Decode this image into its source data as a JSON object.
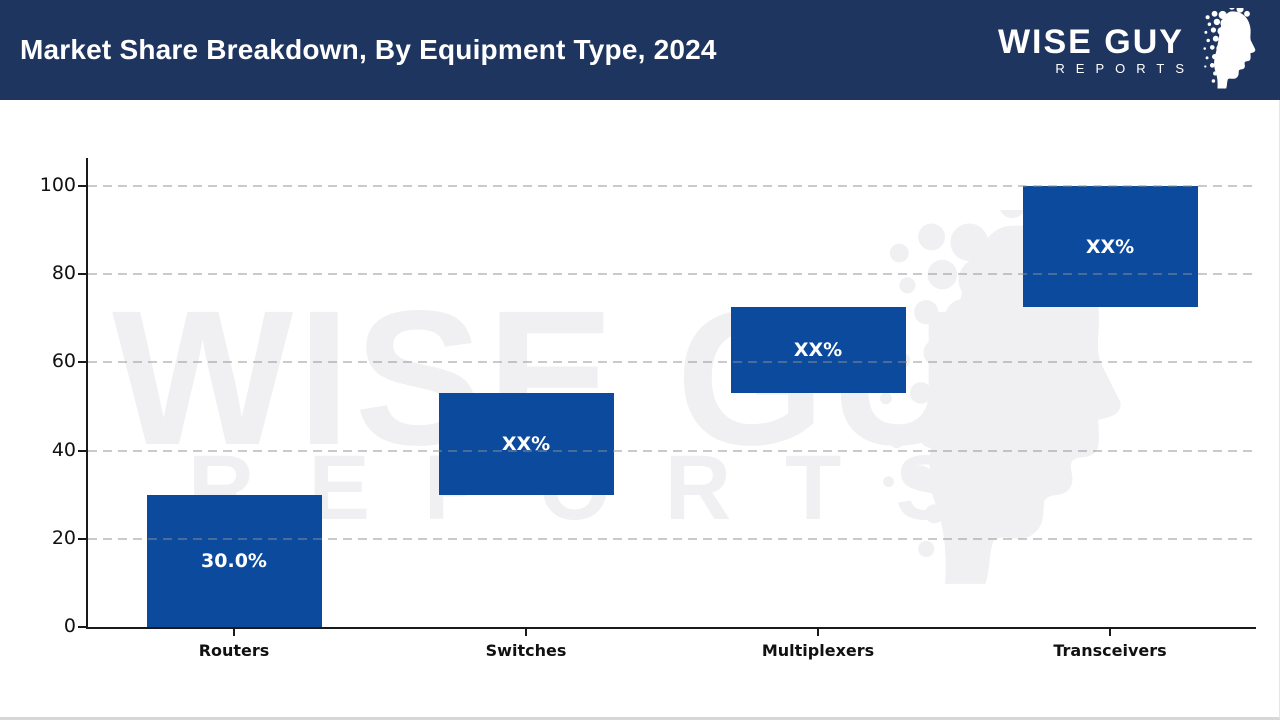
{
  "header": {
    "title": "Market Share Breakdown, By Equipment Type, 2024",
    "brand": {
      "line1": "WISE GUY",
      "line2": "REPORTS"
    }
  },
  "watermark": {
    "line1": "WISE GUY",
    "line2": "REPORTS"
  },
  "colors": {
    "header_bg": "#1e3560",
    "bar_fill": "#0c4a9e",
    "axis": "#1a1a1a",
    "gridline": "#c9c9c9",
    "bar_label_text": "#ffffff",
    "watermark": "#f0f0f2"
  },
  "chart_data": {
    "type": "bar",
    "subtype": "floating-waterfall",
    "title": "Market Share Breakdown, By Equipment Type, 2024",
    "categories": [
      "Routers",
      "Switches",
      "Multiplexers",
      "Transceivers"
    ],
    "bars": [
      {
        "category": "Routers",
        "start": 0,
        "end": 30,
        "label": "30.0%"
      },
      {
        "category": "Switches",
        "start": 30,
        "end": 53,
        "label": "XX%"
      },
      {
        "category": "Multiplexers",
        "start": 53,
        "end": 72.5,
        "label": "XX%"
      },
      {
        "category": "Transceivers",
        "start": 72.5,
        "end": 100,
        "label": "XX%"
      }
    ],
    "xlabel": "",
    "ylabel": "",
    "ylim": [
      0,
      100
    ],
    "yticks": [
      0,
      20,
      40,
      60,
      80,
      100
    ],
    "grid": "horizontal-dashed",
    "legend": "none",
    "value_labels": "centered-inside-bars"
  }
}
